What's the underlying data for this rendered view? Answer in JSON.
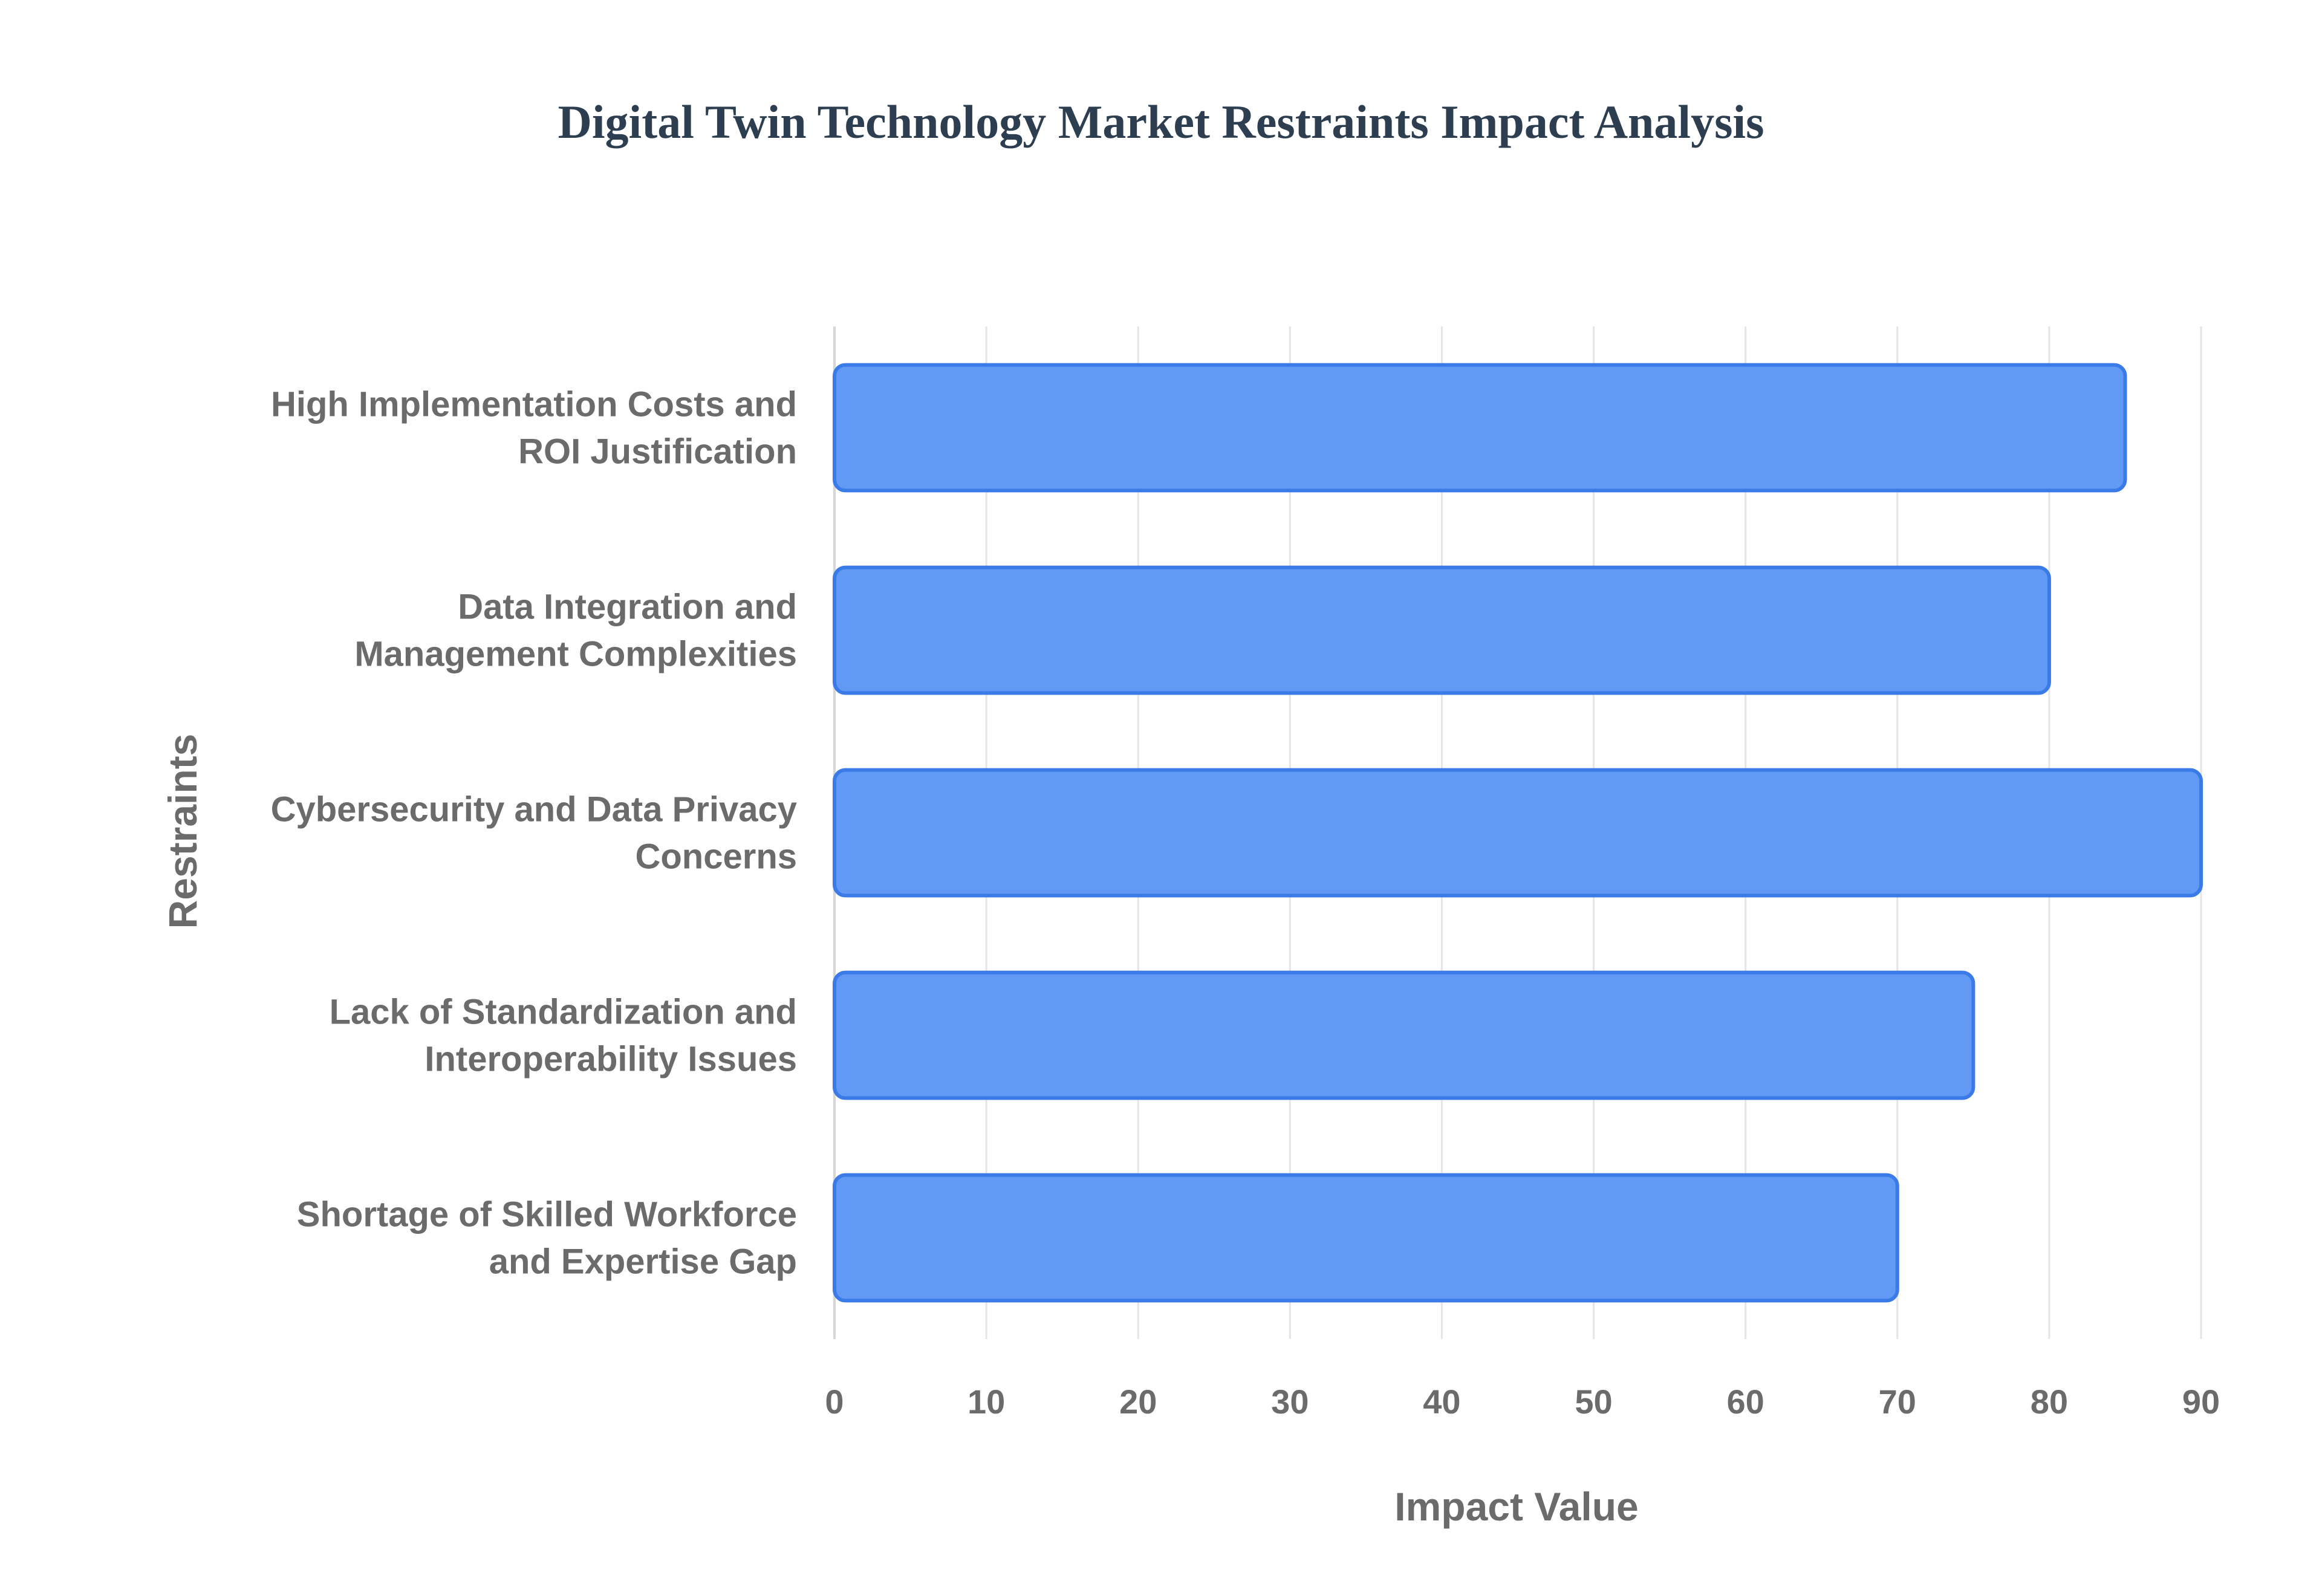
{
  "chart_data": {
    "type": "bar",
    "orientation": "horizontal",
    "title": "Digital Twin Technology Market Restraints Impact Analysis",
    "xlabel": "Impact Value",
    "ylabel": "Restraints",
    "categories": [
      [
        "High Implementation Costs and",
        "ROI Justification"
      ],
      [
        "Data Integration and",
        "Management Complexities"
      ],
      [
        "Cybersecurity and Data Privacy",
        "Concerns"
      ],
      [
        "Lack of Standardization and",
        "Interoperability Issues"
      ],
      [
        "Shortage of Skilled Workforce",
        "and Expertise Gap"
      ]
    ],
    "values": [
      85,
      80,
      90,
      75,
      70
    ],
    "xlim": [
      0,
      90
    ],
    "xticks": [
      "0",
      "10",
      "20",
      "30",
      "40",
      "50",
      "60",
      "70",
      "80",
      "90"
    ],
    "grid": true,
    "legend": "none",
    "colors": {
      "bar_fill": "#6199f5",
      "bar_stroke": "#3b7be8",
      "title": "#2c3e50",
      "text": "#6b6b6b",
      "grid": "#e5e5e5"
    }
  }
}
